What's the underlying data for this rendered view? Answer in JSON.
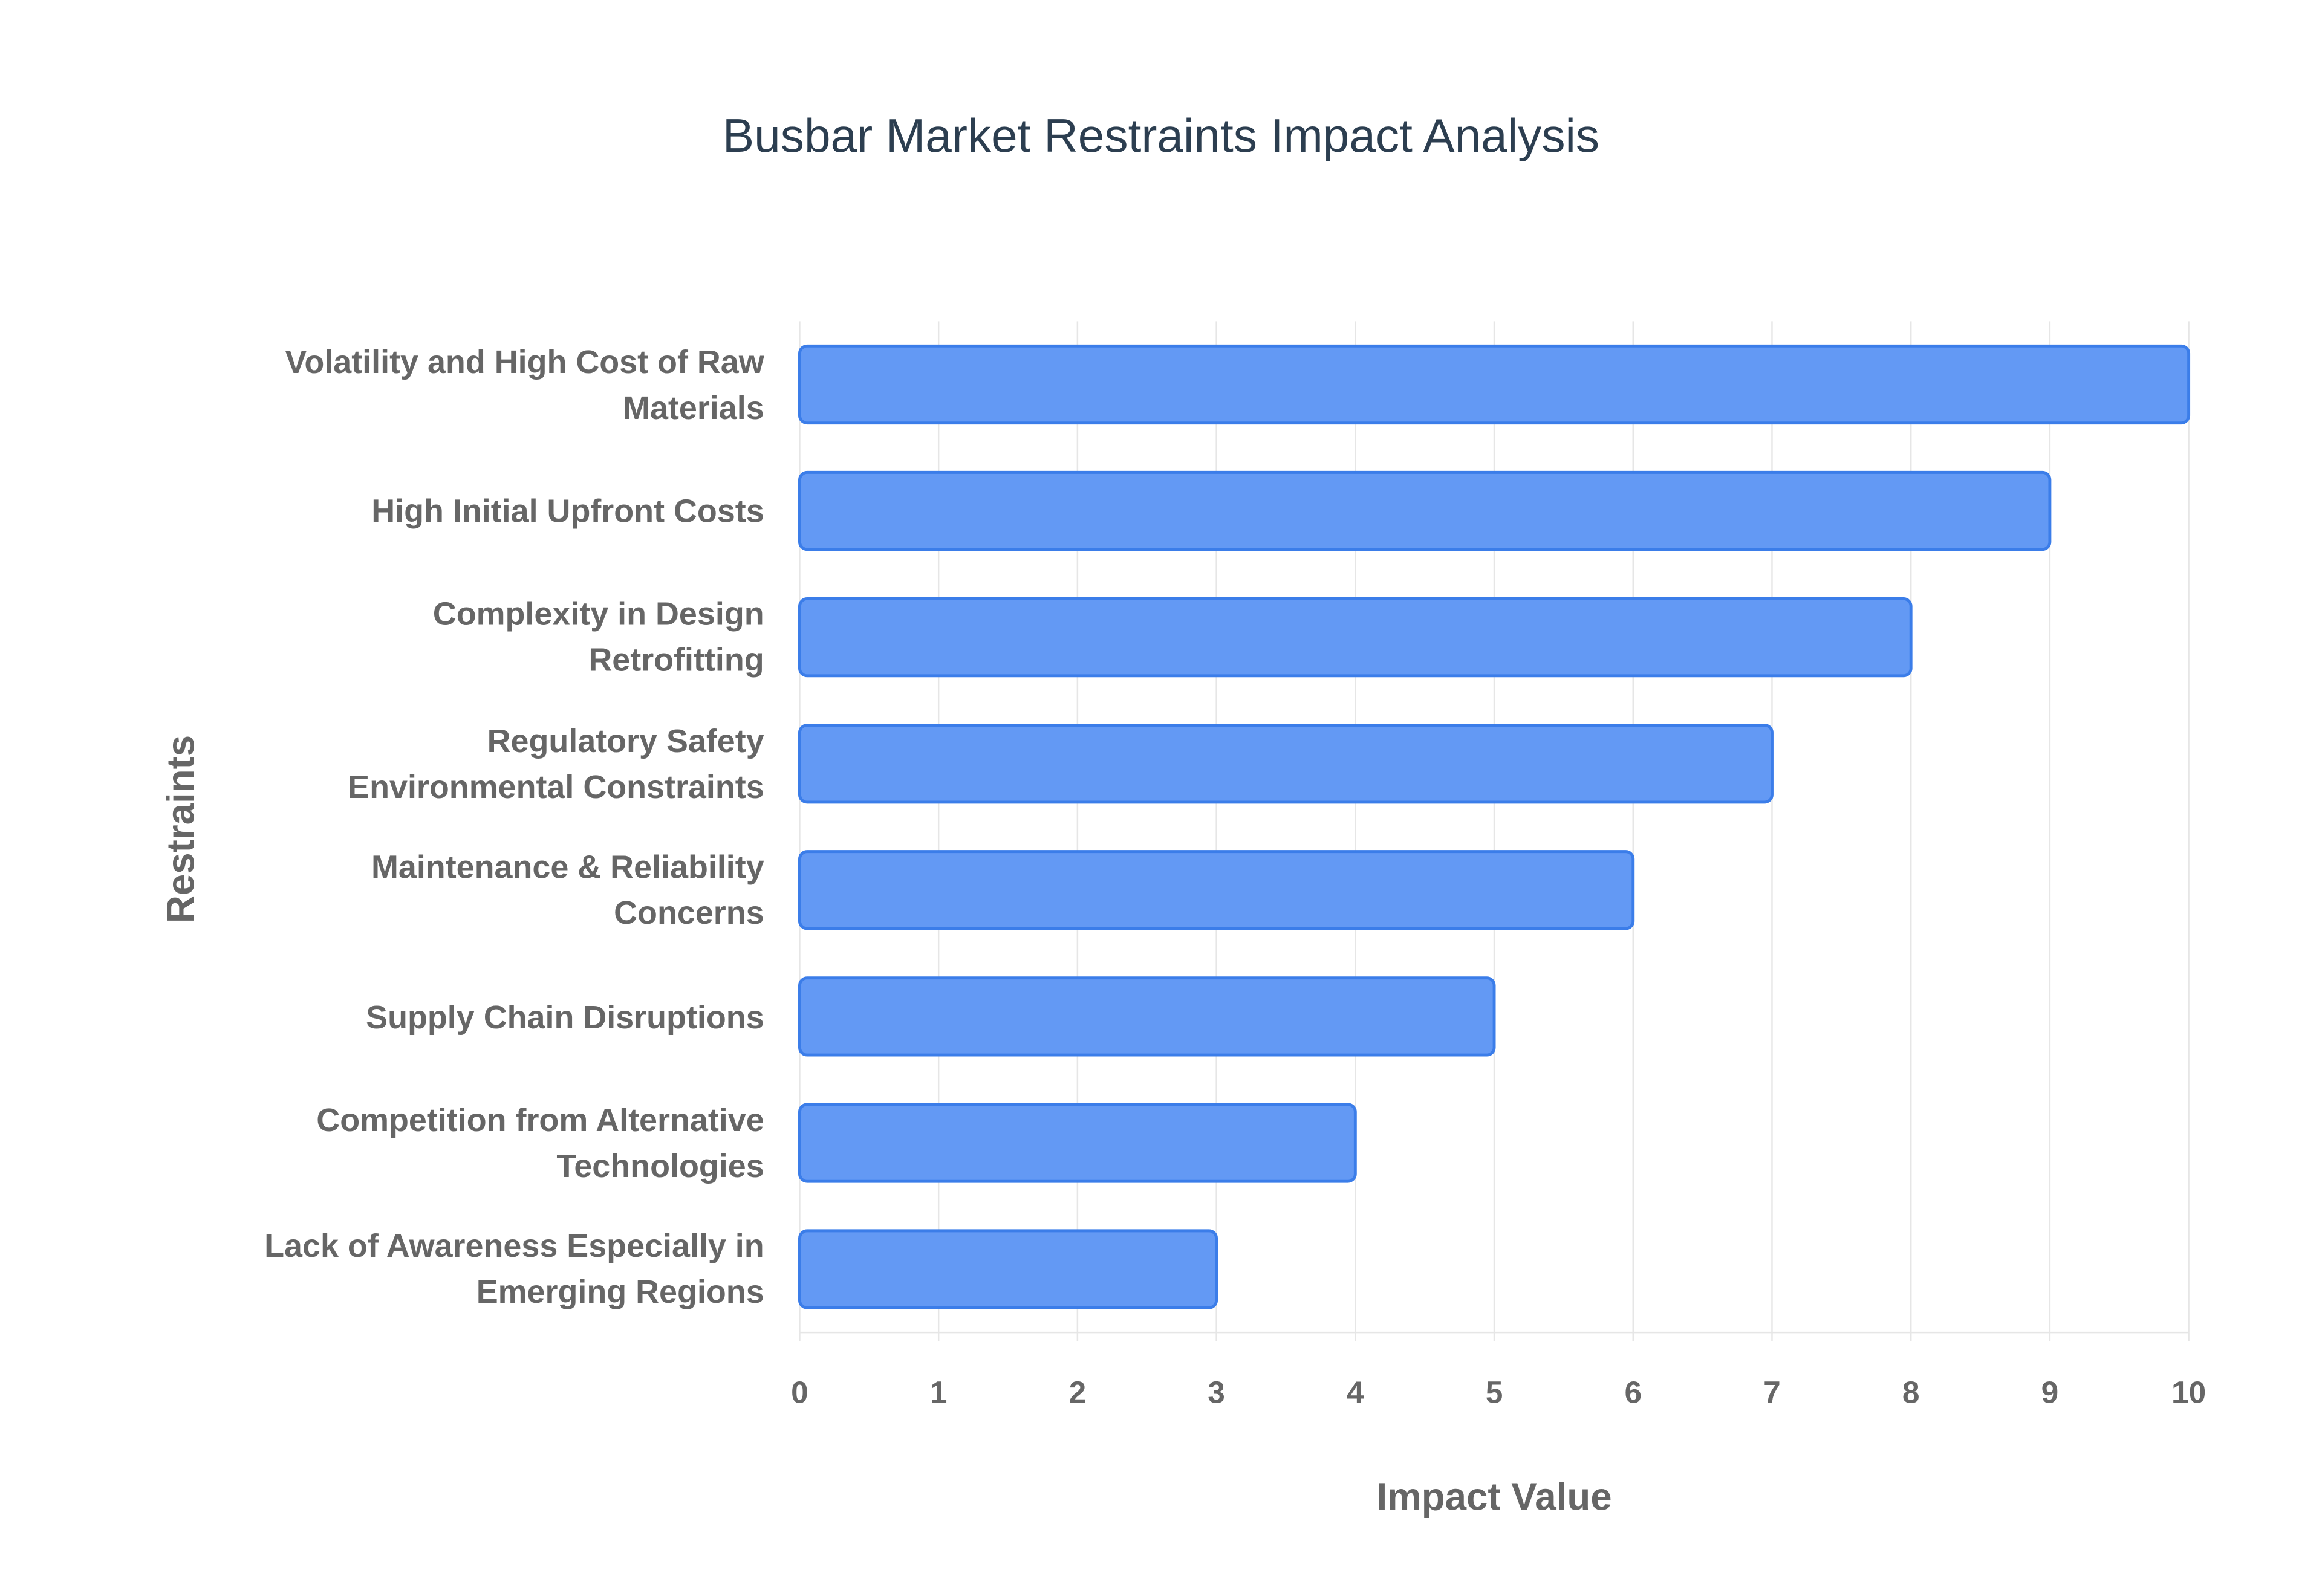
{
  "chart_data": {
    "type": "barh",
    "title": "Busbar Market Restraints Impact Analysis",
    "x_label": "Impact Value",
    "y_label": "Restraints",
    "categories": [
      "Volatility and High Cost of Raw Materials",
      "High Initial Upfront Costs",
      "Complexity in Design Retrofitting",
      "Regulatory Safety Environmental Constraints",
      "Maintenance & Reliability Concerns",
      "Supply Chain Disruptions",
      "Competition from Alternative Technologies",
      "Lack of Awareness Especially in Emerging Regions"
    ],
    "values": [
      10,
      9,
      8,
      7,
      6,
      5,
      4,
      3
    ],
    "color": "#6399f4",
    "xlim": [
      0,
      10
    ],
    "xticks": [
      0,
      1,
      2,
      3,
      4,
      5,
      6,
      7,
      8,
      9,
      10
    ],
    "grid": true
  }
}
